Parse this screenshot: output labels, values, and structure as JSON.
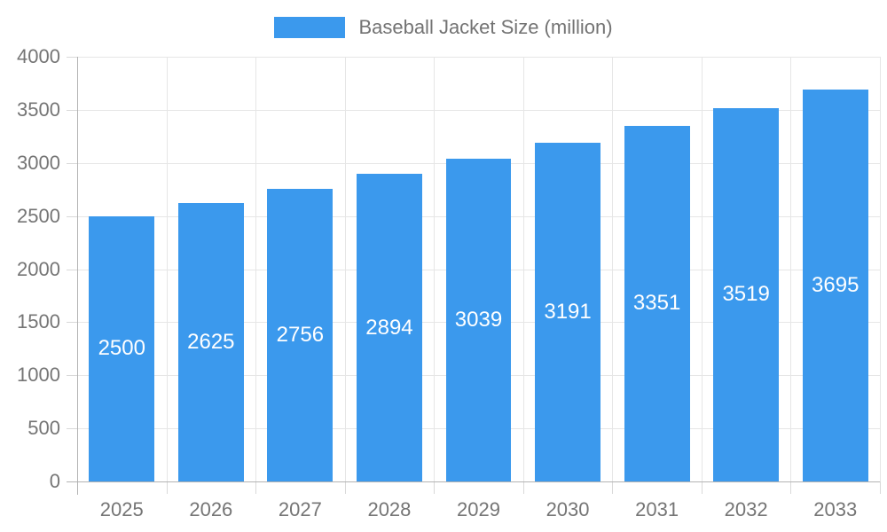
{
  "chart_data": {
    "type": "bar",
    "title": "Baseball Jacket Size (million)",
    "categories": [
      "2025",
      "2026",
      "2027",
      "2028",
      "2029",
      "2030",
      "2031",
      "2032",
      "2033"
    ],
    "values": [
      2500,
      2625,
      2756,
      2894,
      3039,
      3191,
      3351,
      3519,
      3695
    ],
    "xlabel": "",
    "ylabel": "",
    "ylim": [
      0,
      4000
    ],
    "y_ticks": [
      0,
      500,
      1000,
      1500,
      2000,
      2500,
      3000,
      3500,
      4000
    ],
    "grid": true,
    "legend_position": "top-center",
    "value_labels": "inside-center-white",
    "colors": {
      "bar": "#3B99ED",
      "value_label": "#FFFFFF",
      "axis_label": "#757575",
      "legend_text": "#737373",
      "grid_line": "#E6E6E6",
      "axis_line": "#B3B3B3",
      "tick_mark": "#D9D9D9",
      "background": "#FFFFFF"
    }
  }
}
